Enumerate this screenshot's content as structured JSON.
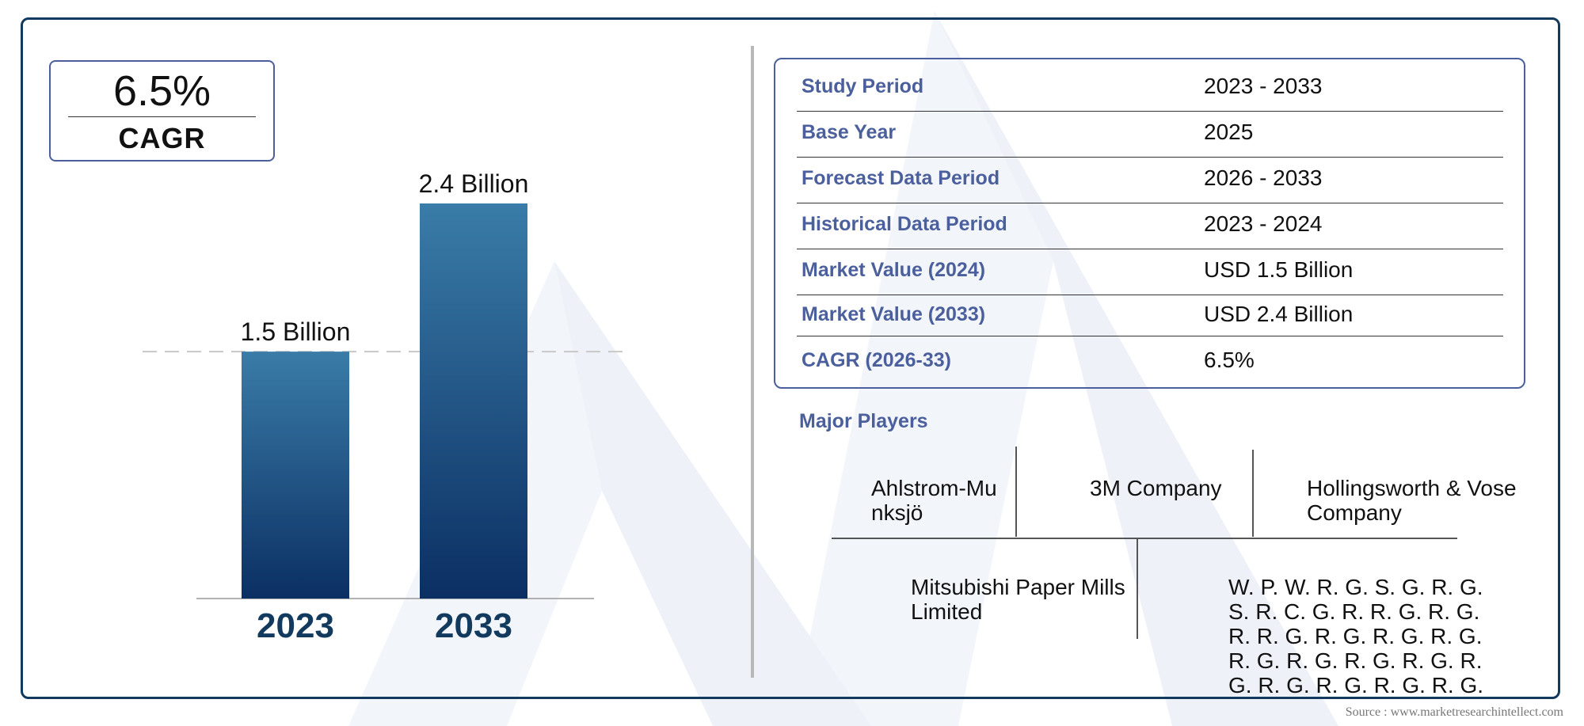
{
  "cagr_box": {
    "value": "6.5%",
    "label": "CAGR"
  },
  "chart_data": {
    "type": "bar",
    "categories": [
      "2023",
      "2033"
    ],
    "values": [
      1.5,
      2.4
    ],
    "data_labels": [
      "1.5 Billion",
      "2.4 Billion"
    ],
    "title": "",
    "xlabel": "",
    "ylabel": "",
    "ylim": [
      0,
      2.4
    ],
    "grid": false,
    "reference_line": "dashed line at first bar value",
    "colors": {
      "bar_top": "#3a7ca8",
      "bar_bottom": "#0b2f63",
      "category_label": "#123a5e"
    }
  },
  "summary_table": [
    {
      "label": "Study Period",
      "value": "2023 - 2033"
    },
    {
      "label": "Base Year",
      "value": "2025"
    },
    {
      "label": "Forecast Data Period",
      "value": "2026 - 2033"
    },
    {
      "label": "Historical Data Period",
      "value": "2023 - 2024"
    },
    {
      "label": "Market Value (2024)",
      "value": "USD 1.5 Billion"
    },
    {
      "label": "Market Value (2033)",
      "value": "USD 2.4 Billion"
    },
    {
      "label": "CAGR (2026-33)",
      "value": "6.5%"
    }
  ],
  "major_players": {
    "title": "Major Players",
    "row1": [
      {
        "line1": "Ahlstrom-Mu",
        "line2": "nksjö"
      },
      {
        "line1": "3M Company",
        "line2": ""
      },
      {
        "line1": "Hollingsworth & Vose",
        "line2": "Company"
      }
    ],
    "row2_left": {
      "line1": "Mitsubishi Paper Mills",
      "line2": "Limited"
    },
    "row2_right": [
      "W. P. W. R. G. S. G. R. G.",
      "S. R. C. G. R. R. G. R. G.",
      "R. R. G. R. G. R. G. R. G.",
      "R. G. R. G. R. G. R. G. R.",
      "G. R. G. R. G. R. G. R. G."
    ]
  },
  "source": "Source : www.marketresearchintellect.com",
  "colors": {
    "frame": "#123a5e",
    "accent": "#4a5f9c",
    "watermark": "#eef2f8"
  }
}
